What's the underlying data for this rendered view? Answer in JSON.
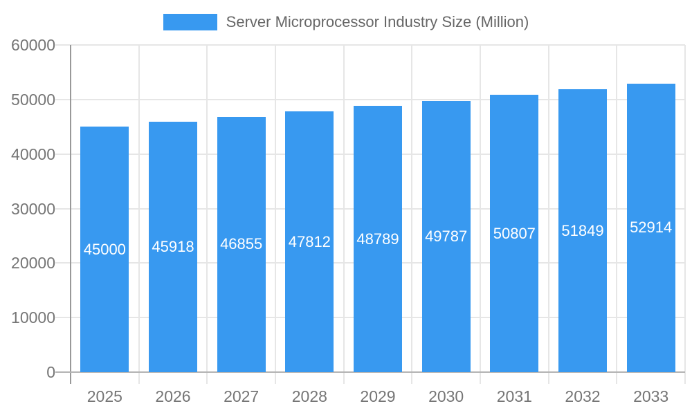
{
  "chart_data": {
    "type": "bar",
    "title": "Server Microprocessor Industry Size (Million)",
    "legend": "Server Microprocessor Industry Size (Million)",
    "legend_position": "top",
    "categories": [
      "2025",
      "2026",
      "2027",
      "2028",
      "2029",
      "2030",
      "2031",
      "2032",
      "2033"
    ],
    "values": [
      45000,
      45918,
      46855,
      47812,
      48789,
      49787,
      50807,
      51849,
      52914
    ],
    "value_labels": [
      "45000",
      "45918",
      "46855",
      "47812",
      "48789",
      "49787",
      "50807",
      "51849",
      "52914"
    ],
    "xlabel": "",
    "ylabel": "",
    "ylim": [
      0,
      60000
    ],
    "ytick_step": 10000,
    "ytick_labels": [
      "0",
      "10000",
      "20000",
      "30000",
      "40000",
      "50000",
      "60000"
    ],
    "grid": true
  },
  "colors": {
    "bar": "#3899F0",
    "grid": "#E6E6E6",
    "axis_line": "#999999",
    "baseline": "#B3B3B3",
    "axis_text": "#757575",
    "legend_text": "#666666",
    "value_text": "#FFFFFF"
  }
}
